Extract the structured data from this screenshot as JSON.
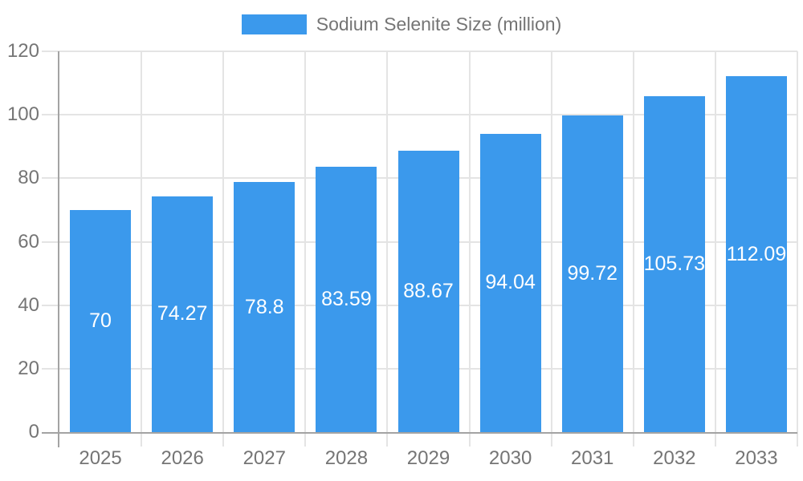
{
  "chart_data": {
    "type": "bar",
    "title": "",
    "xlabel": "",
    "ylabel": "",
    "categories": [
      "2025",
      "2026",
      "2027",
      "2028",
      "2029",
      "2030",
      "2031",
      "2032",
      "2033"
    ],
    "series": [
      {
        "name": "Sodium Selenite Size (million)",
        "values": [
          70,
          74.27,
          78.8,
          83.59,
          88.67,
          94.04,
          99.72,
          105.73,
          112.09
        ]
      }
    ],
    "value_labels": [
      "70",
      "74.27",
      "78.8",
      "83.59",
      "88.67",
      "94.04",
      "99.72",
      "105.73",
      "112.09"
    ],
    "ylim": [
      0,
      120
    ],
    "yticks": [
      0,
      20,
      40,
      60,
      80,
      100,
      120
    ],
    "grid": true,
    "legend_position": "top",
    "colors": {
      "bar": "#3b99ec",
      "grid": "#e4e4e4",
      "axis": "#a3a3a3",
      "tick_text": "#757575",
      "value_label": "#ffffff",
      "background": "#ffffff"
    }
  }
}
